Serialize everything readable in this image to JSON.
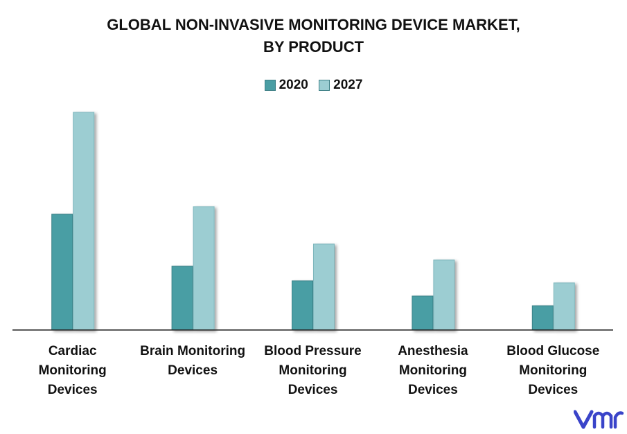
{
  "title_line1": "GLOBAL NON-INVASIVE MONITORING DEVICE MARKET,",
  "title_line2": "BY PRODUCT",
  "colors": {
    "s2020": "#4a9ea4",
    "s2027": "#9ccdd2",
    "axis": "#222222",
    "logo": "#3a44c9"
  },
  "chart_data": {
    "type": "bar",
    "title": "GLOBAL NON-INVASIVE MONITORING DEVICE MARKET, BY PRODUCT",
    "categories": [
      "Cardiac Monitoring Devices",
      "Brain Monitoring Devices",
      "Blood Pressure Monitoring Devices",
      "Anesthesia Monitoring Devices",
      "Blood Glucose Monitoring Devices"
    ],
    "category_lines": [
      [
        "Cardiac",
        "Monitoring",
        "Devices"
      ],
      [
        "Brain Monitoring",
        "Devices"
      ],
      [
        "Blood Pressure",
        "Monitoring",
        "Devices"
      ],
      [
        "Anesthesia",
        "Monitoring",
        "Devices"
      ],
      [
        "Blood Glucose",
        "Monitoring",
        "Devices"
      ]
    ],
    "series": [
      {
        "name": "2020",
        "values": [
          167,
          92,
          71,
          49,
          35
        ]
      },
      {
        "name": "2027",
        "values": [
          314,
          178,
          124,
          101,
          68
        ]
      }
    ],
    "legend_position": "top-center",
    "ylim": [
      0,
      320
    ],
    "xlabel": "",
    "ylabel": "",
    "grid": false
  },
  "logo": {
    "icon": "vmr-logo-icon"
  }
}
